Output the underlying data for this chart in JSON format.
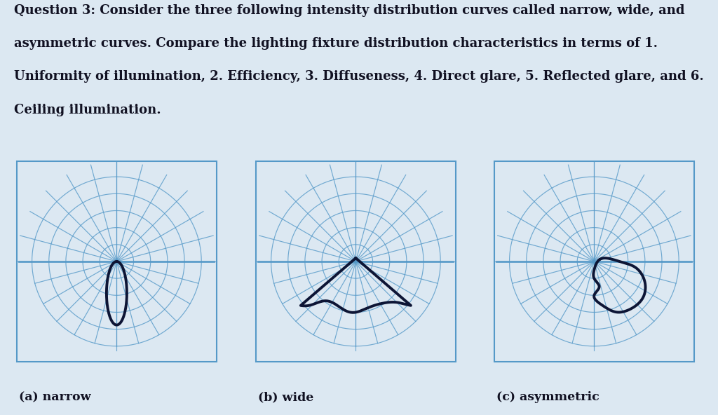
{
  "title_lines": [
    "Question 3: Consider the three following intensity distribution curves called narrow, wide, and",
    "asymmetric curves. Compare the lighting fixture distribution characteristics in terms of 1.",
    "Uniformity of illumination, 2. Efficiency, 3. Diffuseness, 4. Direct glare, 5. Reflected glare, and 6.",
    "Ceiling illumination."
  ],
  "bg_color": "#dce8f2",
  "panel_bg": "#ccdde8",
  "grid_color": "#5599c8",
  "curve_color": "#0d1535",
  "text_color": "#111122",
  "labels": [
    "(a) narrow",
    "(b) wide",
    "(c) asymmetric"
  ],
  "title_fontsize": 13.0,
  "label_fontsize": 12.5
}
